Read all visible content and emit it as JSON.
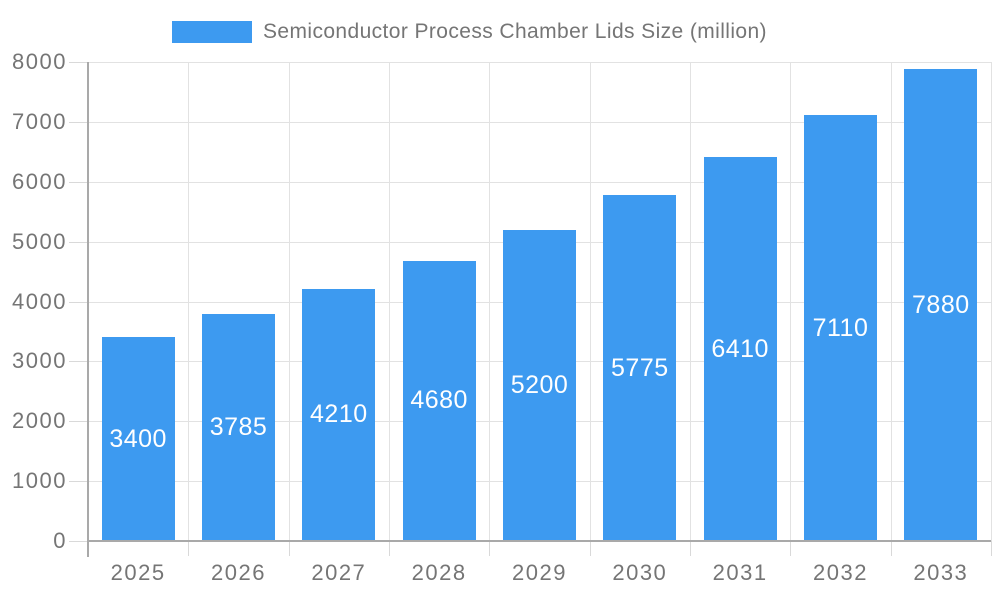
{
  "legend": {
    "label": "Semiconductor Process Chamber Lids Size (million)"
  },
  "chart_data": {
    "type": "bar",
    "title": "Semiconductor Process Chamber Lids Size (million)",
    "categories": [
      "2025",
      "2026",
      "2027",
      "2028",
      "2029",
      "2030",
      "2031",
      "2032",
      "2033"
    ],
    "series": [
      {
        "name": "Semiconductor Process Chamber Lids Size (million)",
        "values": [
          3400,
          3785,
          4210,
          4680,
          5200,
          5775,
          6410,
          7110,
          7880
        ]
      }
    ],
    "bar_labels_shown": true,
    "xlabel": "",
    "ylabel": "",
    "ylim": [
      0,
      8000
    ],
    "ytick_step": 1000,
    "yticks": [
      0,
      1000,
      2000,
      3000,
      4000,
      5000,
      6000,
      7000,
      8000
    ],
    "grid": true,
    "legend_position": "top",
    "colors": {
      "bar": "#3D9AF0",
      "bar_label_text": "#FFFFFF",
      "axis_text": "#757575",
      "gridline": "#E2E2E2",
      "tick": "#D9D9D9",
      "axis_line": "#A9A9A9",
      "background": "#FFFFFF"
    }
  }
}
